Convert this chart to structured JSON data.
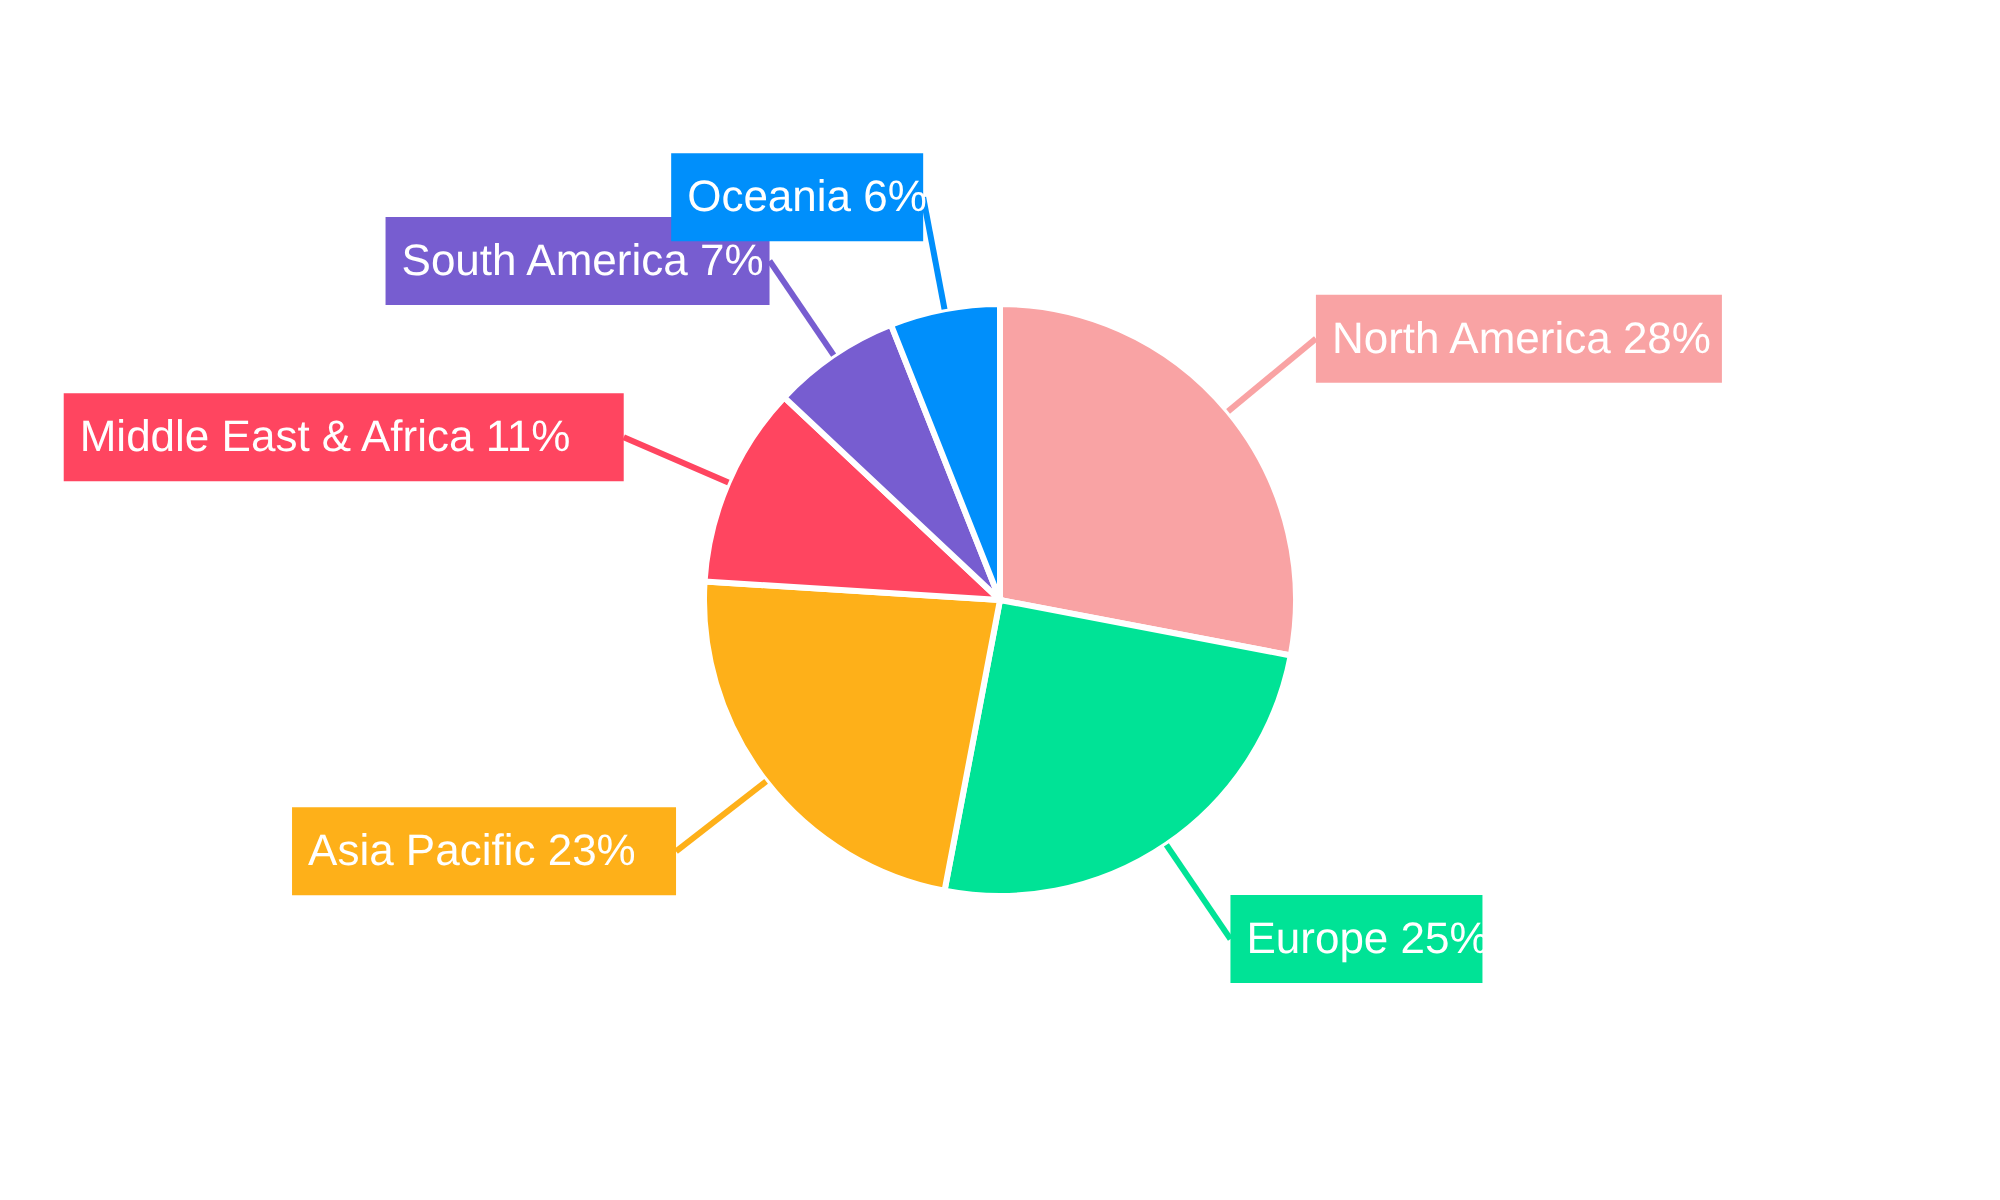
{
  "chart_data": {
    "type": "pie",
    "categories": [
      "North America",
      "Europe",
      "Asia Pacific",
      "Middle East & Africa",
      "South America",
      "Oceania"
    ],
    "values": [
      28,
      25,
      23,
      11,
      7,
      6
    ],
    "value_labels": [
      "28%",
      "25%",
      "23%",
      "11%",
      "7%",
      "6%"
    ],
    "colors": [
      "#f9a3a4",
      "#00e396",
      "#feb019",
      "#ff4560",
      "#775dd0",
      "#008ffb"
    ]
  }
}
